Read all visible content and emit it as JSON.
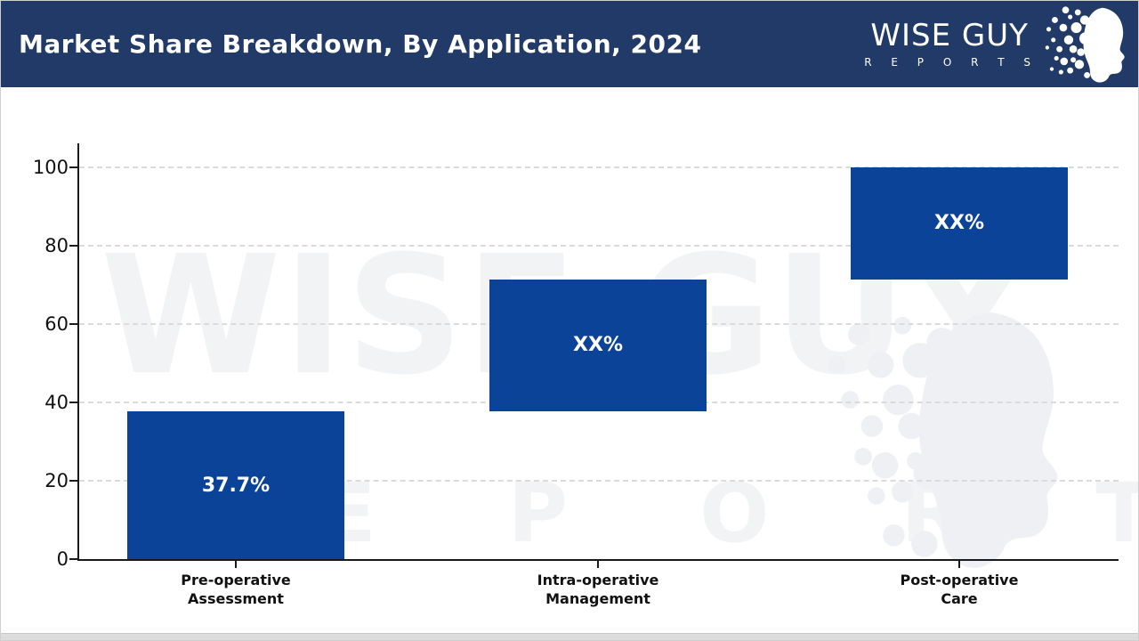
{
  "header": {
    "title": "Market Share Breakdown, By Application, 2024",
    "logo": {
      "wordmark": "WISE GUY",
      "subtitle": "R E P O R T S"
    },
    "bg_color": "#223a67"
  },
  "watermark": {
    "line1": "WISE GUY",
    "line2": "R E P O R T S"
  },
  "chart_data": {
    "type": "bar",
    "subtype": "stacked-breakdown-floating-bars",
    "title": "Market Share Breakdown, By Application, 2024",
    "categories": [
      {
        "line1": "Pre-operative",
        "line2": "Assessment"
      },
      {
        "line1": "Intra-operative",
        "line2": "Management"
      },
      {
        "line1": "Post-operative",
        "line2": "Care"
      }
    ],
    "segments": [
      {
        "from": 0,
        "to": 37.7,
        "label": "37.7%"
      },
      {
        "from": 37.7,
        "to": 71.4,
        "label": "XX%"
      },
      {
        "from": 71.4,
        "to": 100,
        "label": "XX%"
      }
    ],
    "values_pct": [
      37.7,
      33.7,
      28.6
    ],
    "bar_labels": [
      "37.7%",
      "XX%",
      "XX%"
    ],
    "ylim": [
      0,
      100
    ],
    "yticks": [
      0,
      20,
      40,
      60,
      80,
      100
    ],
    "xlabel": "",
    "ylabel": "",
    "grid": "horizontal-dashed",
    "legend": "none",
    "bar_color": "#0b4399",
    "bar_label_color": "#ffffff",
    "axis_color": "#1a1a1a",
    "gridline_color": "#dbdbdb"
  }
}
